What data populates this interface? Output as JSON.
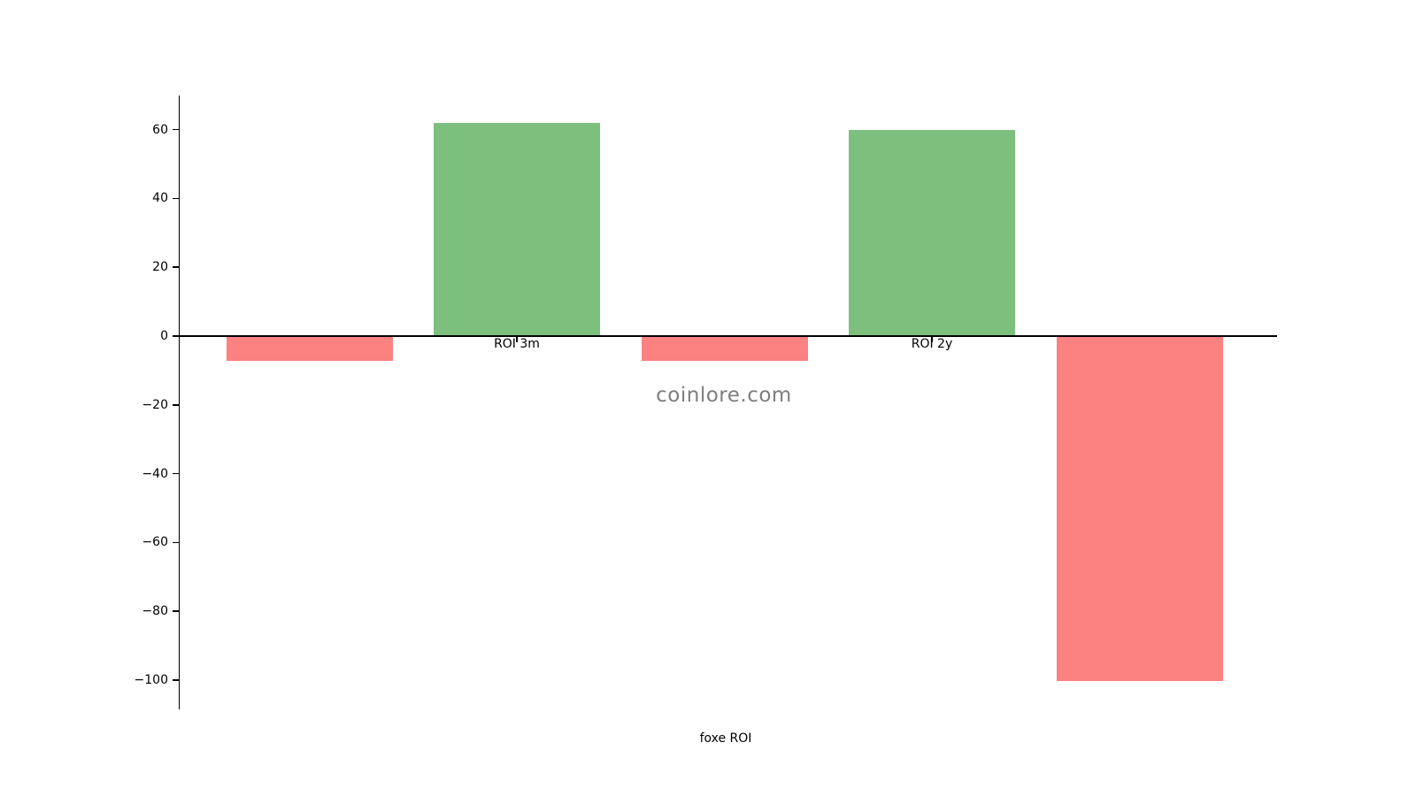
{
  "chart_data": {
    "type": "bar",
    "title": "",
    "xlabel": "foxe ROI",
    "ylabel": "",
    "watermark": "coinlore.com",
    "categories": [
      "",
      "ROI 3m",
      "",
      "ROI 2y",
      ""
    ],
    "values": [
      -7,
      62,
      -7,
      60,
      -100
    ],
    "yticks": [
      {
        "value": 60,
        "label": "60"
      },
      {
        "value": 40,
        "label": "40"
      },
      {
        "value": 20,
        "label": "20"
      },
      {
        "value": 0,
        "label": "0"
      },
      {
        "value": -20,
        "label": "−20"
      },
      {
        "value": -40,
        "label": "−40"
      },
      {
        "value": -60,
        "label": "−60"
      },
      {
        "value": -80,
        "label": "−80"
      },
      {
        "value": -100,
        "label": "−100"
      }
    ],
    "ylim": [
      -108.5,
      70
    ],
    "grid": false,
    "legend": false,
    "colors": {
      "positive": "#7dc07e",
      "negative": "#fc8181",
      "axis": "#000000",
      "watermark": "#7e7e7e"
    }
  }
}
